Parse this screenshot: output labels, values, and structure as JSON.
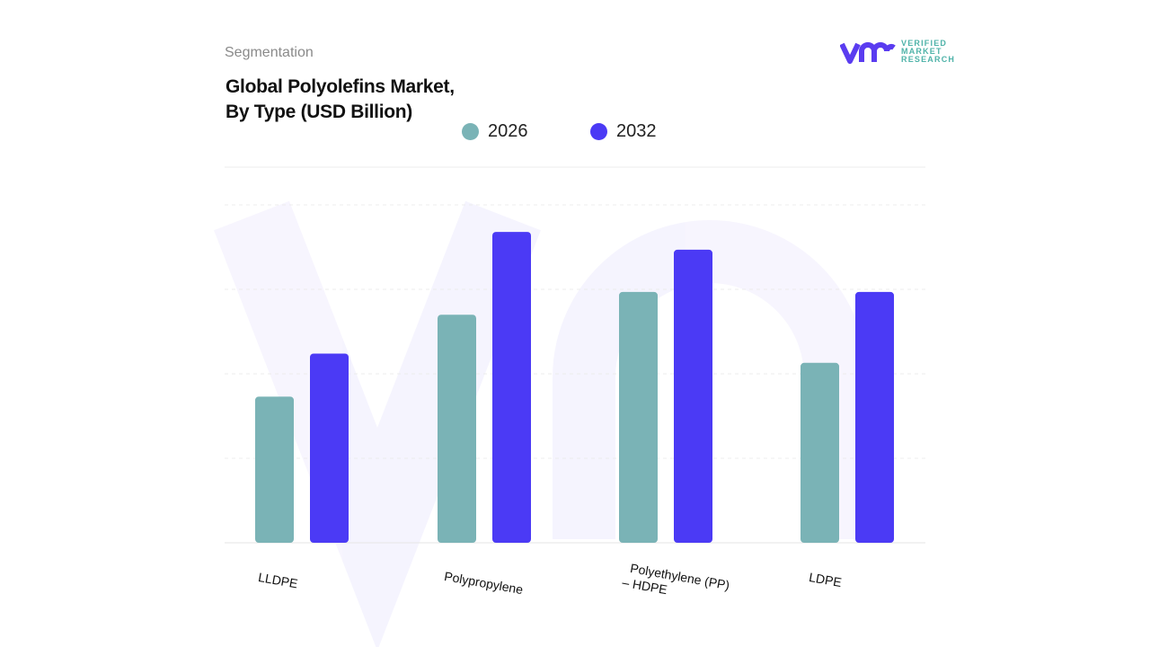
{
  "header": {
    "section": "Segmentation",
    "title_line1": "Global Polyolefins Market,",
    "title_line2": "By Type (USD Billion)"
  },
  "logo": {
    "line1": "VERIFIED",
    "line2": "MARKET",
    "line3": "RESEARCH"
  },
  "chart_data": {
    "type": "bar",
    "title": "Global Polyolefins Market, By Type (USD Billion)",
    "categories": [
      "LLDPE",
      "Polypropylene",
      "Polyethylene (PP) – HDPE",
      "LDPE"
    ],
    "category_lines": [
      [
        "LLDPE"
      ],
      [
        "Polypropylene"
      ],
      [
        "Polyethylene (PP)",
        "– HDPE"
      ],
      [
        "LDPE"
      ]
    ],
    "series": [
      {
        "name": "2026",
        "color": "#7ab3b6",
        "values": [
          1.73,
          2.7,
          2.97,
          2.13
        ]
      },
      {
        "name": "2032",
        "color": "#4b3af5",
        "values": [
          2.24,
          3.68,
          3.47,
          2.97
        ]
      }
    ],
    "ylim": [
      0,
      4
    ],
    "grid": true,
    "y_tick_labels_shown": false,
    "legend_position": "top-center"
  }
}
